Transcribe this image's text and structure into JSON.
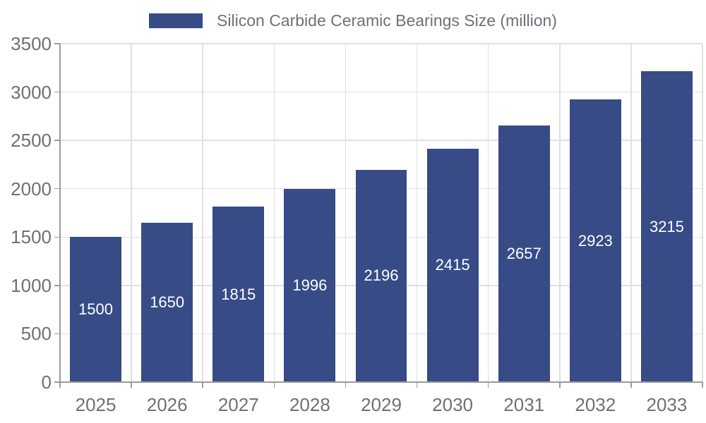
{
  "legend": {
    "label": "Silicon Carbide Ceramic Bearings Size (million)"
  },
  "chart_data": {
    "type": "bar",
    "title": "Silicon Carbide Ceramic Bearings Size (million)",
    "series_name": "Silicon Carbide Ceramic Bearings Size (million)",
    "categories": [
      "2025",
      "2026",
      "2027",
      "2028",
      "2029",
      "2030",
      "2031",
      "2032",
      "2033"
    ],
    "values": [
      1500,
      1650,
      1815,
      1996,
      2196,
      2415,
      2657,
      2923,
      3215
    ],
    "xlabel": "",
    "ylabel": "",
    "ylim": [
      0,
      3500
    ],
    "yticks": [
      0,
      500,
      1000,
      1500,
      2000,
      2500,
      3000,
      3500
    ],
    "grid": true,
    "legend_position": "top",
    "bar_labels_inside": true
  },
  "colors": {
    "bar": "#374B87",
    "grid": "#E0E0E0",
    "axis": "#9B9B9B",
    "text": "#6E7079",
    "bar_label": "#FFFFFF",
    "background": "#FFFFFF"
  }
}
